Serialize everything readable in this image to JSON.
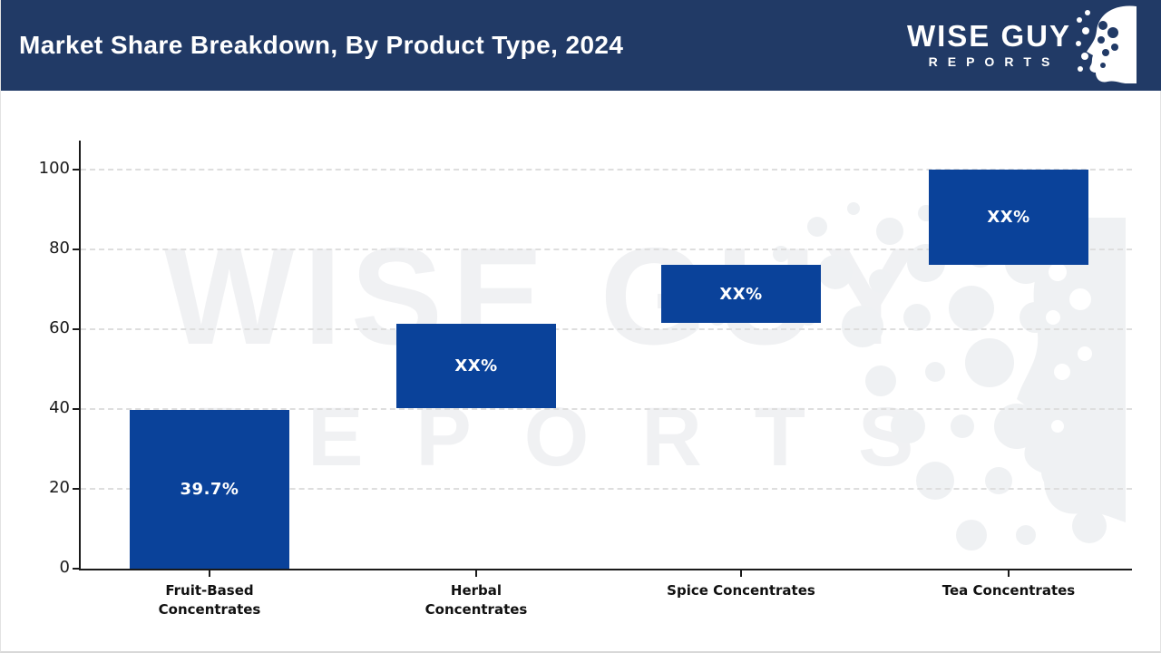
{
  "header": {
    "title": "Market Share Breakdown, By Product Type, 2024",
    "logo": {
      "name": "WISE GUY",
      "subtitle": "REPORTS"
    }
  },
  "watermark": {
    "name": "WISE GUY",
    "subtitle": "REPORTS"
  },
  "chart_data": {
    "type": "bar",
    "subtype": "waterfall",
    "title": "Market Share Breakdown, By Product Type, 2024",
    "categories": [
      [
        "Fruit-Based",
        "Concentrates"
      ],
      [
        "Herbal",
        "Concentrates"
      ],
      [
        "Spice Concentrates"
      ],
      [
        "Tea Concentrates"
      ]
    ],
    "segments": [
      {
        "category": "Fruit-Based Concentrates",
        "start": 0,
        "end": 39.7,
        "label": "39.7%"
      },
      {
        "category": "Herbal Concentrates",
        "start": 40.3,
        "end": 61.3,
        "label": "XX%"
      },
      {
        "category": "Spice Concentrates",
        "start": 61.6,
        "end": 76.1,
        "label": "XX%"
      },
      {
        "category": "Tea Concentrates",
        "start": 76.2,
        "end": 100,
        "label": "XX%"
      }
    ],
    "y_ticks": [
      0,
      20,
      40,
      60,
      80,
      100
    ],
    "ylim": [
      0,
      107
    ],
    "xlabel": "",
    "ylabel": "",
    "grid": "horizontal-dashed",
    "legend": null,
    "colors": {
      "bar": "#0a429a",
      "bar_label": "#ffffff",
      "grid": "#dedede",
      "axis": "#1a1a1a",
      "header_bg": "#213a66",
      "watermark": "#f0f1f3"
    }
  }
}
